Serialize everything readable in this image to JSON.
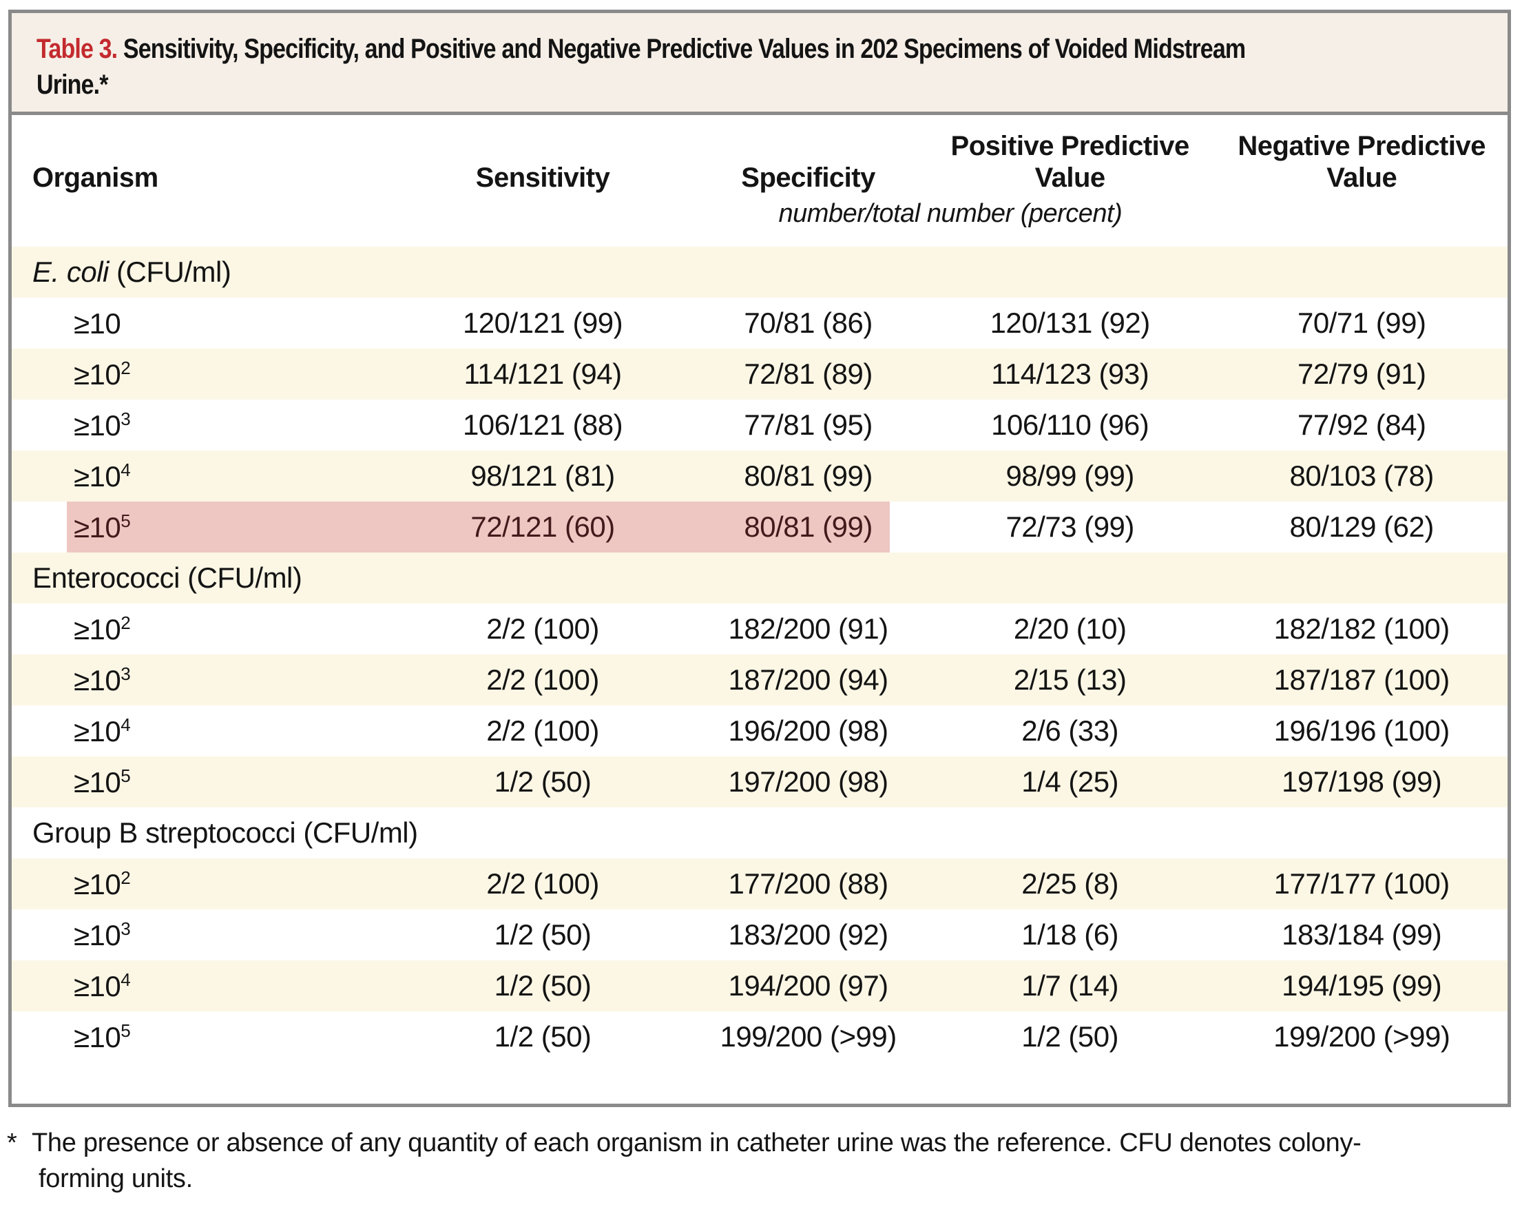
{
  "table": {
    "label": "Table 3.",
    "title_line1": "Sensitivity, Specificity, and Positive and Negative Predictive Values in 202 Specimens of Voided Midstream",
    "title_line2": "Urine.*",
    "columns": {
      "organism": "Organism",
      "sensitivity": "Sensitivity",
      "specificity": "Specificity",
      "ppv": "Positive Predictive Value",
      "npv": "Negative Predictive Value"
    },
    "units_note": "number/total number (percent)",
    "sections": [
      {
        "header": {
          "italic": "E. coli",
          "rest": " (CFU/ml)"
        },
        "rows": [
          {
            "threshold_base": "≥10",
            "threshold_exp": "",
            "sensitivity": "120/121 (99)",
            "specificity": "70/81 (86)",
            "ppv": "120/131 (92)",
            "npv": "70/71 (99)",
            "highlight": false
          },
          {
            "threshold_base": "≥10",
            "threshold_exp": "2",
            "sensitivity": "114/121 (94)",
            "specificity": "72/81 (89)",
            "ppv": "114/123 (93)",
            "npv": "72/79 (91)",
            "highlight": false
          },
          {
            "threshold_base": "≥10",
            "threshold_exp": "3",
            "sensitivity": "106/121 (88)",
            "specificity": "77/81 (95)",
            "ppv": "106/110 (96)",
            "npv": "77/92 (84)",
            "highlight": false
          },
          {
            "threshold_base": "≥10",
            "threshold_exp": "4",
            "sensitivity": "98/121 (81)",
            "specificity": "80/81 (99)",
            "ppv": "98/99 (99)",
            "npv": "80/103 (78)",
            "highlight": false
          },
          {
            "threshold_base": "≥10",
            "threshold_exp": "5",
            "sensitivity": "72/121 (60)",
            "specificity": "80/81 (99)",
            "ppv": "72/73 (99)",
            "npv": "80/129 (62)",
            "highlight": true
          }
        ]
      },
      {
        "header": {
          "italic": "",
          "rest": "Enterococci (CFU/ml)"
        },
        "rows": [
          {
            "threshold_base": "≥10",
            "threshold_exp": "2",
            "sensitivity": "2/2 (100)",
            "specificity": "182/200 (91)",
            "ppv": "2/20 (10)",
            "npv": "182/182 (100)",
            "highlight": false
          },
          {
            "threshold_base": "≥10",
            "threshold_exp": "3",
            "sensitivity": "2/2 (100)",
            "specificity": "187/200 (94)",
            "ppv": "2/15 (13)",
            "npv": "187/187 (100)",
            "highlight": false
          },
          {
            "threshold_base": "≥10",
            "threshold_exp": "4",
            "sensitivity": "2/2 (100)",
            "specificity": "196/200 (98)",
            "ppv": "2/6 (33)",
            "npv": "196/196 (100)",
            "highlight": false
          },
          {
            "threshold_base": "≥10",
            "threshold_exp": "5",
            "sensitivity": "1/2 (50)",
            "specificity": "197/200 (98)",
            "ppv": "1/4 (25)",
            "npv": "197/198 (99)",
            "highlight": false
          }
        ]
      },
      {
        "header": {
          "italic": "",
          "rest": "Group B streptococci (CFU/ml)"
        },
        "rows": [
          {
            "threshold_base": "≥10",
            "threshold_exp": "2",
            "sensitivity": "2/2 (100)",
            "specificity": "177/200 (88)",
            "ppv": "2/25 (8)",
            "npv": "177/177 (100)",
            "highlight": false
          },
          {
            "threshold_base": "≥10",
            "threshold_exp": "3",
            "sensitivity": "1/2 (50)",
            "specificity": "183/200 (92)",
            "ppv": "1/18 (6)",
            "npv": "183/184 (99)",
            "highlight": false
          },
          {
            "threshold_base": "≥10",
            "threshold_exp": "4",
            "sensitivity": "1/2 (50)",
            "specificity": "194/200 (97)",
            "ppv": "1/7 (14)",
            "npv": "194/195 (99)",
            "highlight": false
          },
          {
            "threshold_base": "≥10",
            "threshold_exp": "5",
            "sensitivity": "1/2 (50)",
            "specificity": "199/200 (>99)",
            "ppv": "1/2 (50)",
            "npv": "199/200 (>99)",
            "highlight": false
          }
        ]
      }
    ],
    "footnote": {
      "marker": "*",
      "line1": "The presence or absence of any quantity of each organism in catheter urine was the reference. CFU denotes colony-",
      "line2": "forming units."
    },
    "colors": {
      "accent_red": "#c32a2e",
      "title_band": "#f6efe7",
      "row_stripe": "#fcf7e5",
      "highlight_pink": "#eec7c2",
      "highlight_text": "#421a1b",
      "border_gray": "#8a8a8a"
    }
  }
}
